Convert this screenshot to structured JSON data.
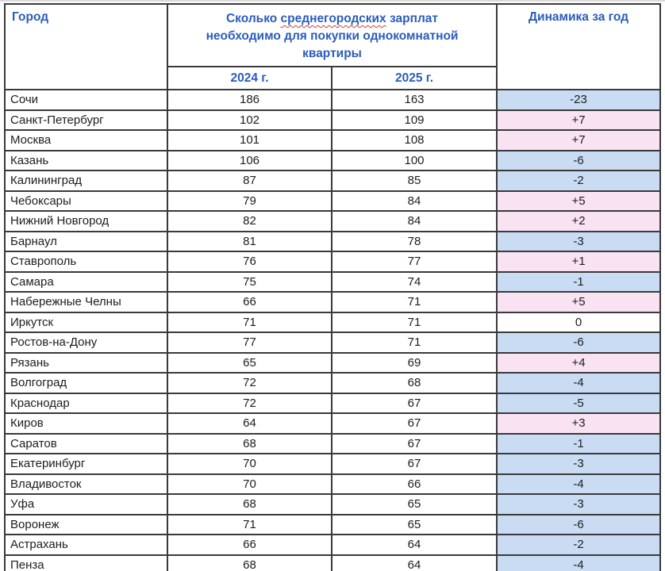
{
  "colors": {
    "header_text": "#2b5cbc",
    "decrease_bg": "#c9dcf4",
    "increase_bg": "#f9e3f3",
    "border": "#3a3a3a",
    "squiggle": "#d93a2b"
  },
  "table": {
    "headers": {
      "city": "Город",
      "span_line1_before": "Сколько",
      "span_line1_misspelled": "среднегородских",
      "span_line1_after": "зарплат",
      "span_line2": "необходимо для покупки однокомнатной",
      "span_line3": "квартиры",
      "year2024": "2024 г.",
      "year2025": "2025 г.",
      "dynamics": "Динамика за год"
    },
    "rows": [
      {
        "city": "Сочи",
        "y2024": "186",
        "y2025": "163",
        "delta": "-23",
        "trend": "down"
      },
      {
        "city": "Санкт-Петербург",
        "y2024": "102",
        "y2025": "109",
        "delta": "+7",
        "trend": "up"
      },
      {
        "city": "Москва",
        "y2024": "101",
        "y2025": "108",
        "delta": "+7",
        "trend": "up"
      },
      {
        "city": "Казань",
        "y2024": "106",
        "y2025": "100",
        "delta": "-6",
        "trend": "down"
      },
      {
        "city": "Калининград",
        "y2024": "87",
        "y2025": "85",
        "delta": "-2",
        "trend": "down"
      },
      {
        "city": "Чебоксары",
        "y2024": "79",
        "y2025": "84",
        "delta": "+5",
        "trend": "up"
      },
      {
        "city": "Нижний Новгород",
        "y2024": "82",
        "y2025": "84",
        "delta": "+2",
        "trend": "up"
      },
      {
        "city": "Барнаул",
        "y2024": "81",
        "y2025": "78",
        "delta": "-3",
        "trend": "down"
      },
      {
        "city": "Ставрополь",
        "y2024": "76",
        "y2025": "77",
        "delta": "+1",
        "trend": "up"
      },
      {
        "city": "Самара",
        "y2024": "75",
        "y2025": "74",
        "delta": "-1",
        "trend": "down"
      },
      {
        "city": "Набережные Челны",
        "y2024": "66",
        "y2025": "71",
        "delta": "+5",
        "trend": "up"
      },
      {
        "city": "Иркутск",
        "y2024": "71",
        "y2025": "71",
        "delta": "0",
        "trend": "zero"
      },
      {
        "city": "Ростов-на-Дону",
        "y2024": "77",
        "y2025": "71",
        "delta": "-6",
        "trend": "down"
      },
      {
        "city": "Рязань",
        "y2024": "65",
        "y2025": "69",
        "delta": "+4",
        "trend": "up"
      },
      {
        "city": "Волгоград",
        "y2024": "72",
        "y2025": "68",
        "delta": "-4",
        "trend": "down"
      },
      {
        "city": "Краснодар",
        "y2024": "72",
        "y2025": "67",
        "delta": "-5",
        "trend": "down"
      },
      {
        "city": "Киров",
        "y2024": "64",
        "y2025": "67",
        "delta": "+3",
        "trend": "up"
      },
      {
        "city": "Саратов",
        "y2024": "68",
        "y2025": "67",
        "delta": "-1",
        "trend": "down"
      },
      {
        "city": "Екатеринбург",
        "y2024": "70",
        "y2025": "67",
        "delta": "-3",
        "trend": "down"
      },
      {
        "city": "Владивосток",
        "y2024": "70",
        "y2025": "66",
        "delta": "-4",
        "trend": "down"
      },
      {
        "city": "Уфа",
        "y2024": "68",
        "y2025": "65",
        "delta": "-3",
        "trend": "down"
      },
      {
        "city": "Воронеж",
        "y2024": "71",
        "y2025": "65",
        "delta": "-6",
        "trend": "down"
      },
      {
        "city": "Астрахань",
        "y2024": "66",
        "y2025": "64",
        "delta": "-2",
        "trend": "down"
      },
      {
        "city": "Пенза",
        "y2024": "68",
        "y2025": "64",
        "delta": "-4",
        "trend": "down"
      }
    ]
  },
  "chart_data": {
    "type": "table",
    "title": "Сколько среднегородских зарплат необходимо для покупки однокомнатной квартиры",
    "columns": [
      "Город",
      "2024 г.",
      "2025 г.",
      "Динамика за год"
    ],
    "categories": [
      "Сочи",
      "Санкт-Петербург",
      "Москва",
      "Казань",
      "Калининград",
      "Чебоксары",
      "Нижний Новгород",
      "Барнаул",
      "Ставрополь",
      "Самара",
      "Набережные Челны",
      "Иркутск",
      "Ростов-на-Дону",
      "Рязань",
      "Волгоград",
      "Краснодар",
      "Киров",
      "Саратов",
      "Екатеринбург",
      "Владивосток",
      "Уфа",
      "Воронеж",
      "Астрахань",
      "Пенза"
    ],
    "series": [
      {
        "name": "2024 г.",
        "values": [
          186,
          102,
          101,
          106,
          87,
          79,
          82,
          81,
          76,
          75,
          66,
          71,
          77,
          65,
          72,
          72,
          64,
          68,
          70,
          70,
          68,
          71,
          66,
          68
        ]
      },
      {
        "name": "2025 г.",
        "values": [
          163,
          109,
          108,
          100,
          85,
          84,
          84,
          78,
          77,
          74,
          71,
          71,
          71,
          69,
          68,
          67,
          67,
          67,
          67,
          66,
          65,
          65,
          64,
          64
        ]
      },
      {
        "name": "Динамика за год",
        "values": [
          -23,
          7,
          7,
          -6,
          -2,
          5,
          2,
          -3,
          1,
          -1,
          5,
          0,
          -6,
          4,
          -4,
          -5,
          3,
          -1,
          -3,
          -4,
          -3,
          -6,
          -2,
          -4
        ]
      }
    ]
  }
}
